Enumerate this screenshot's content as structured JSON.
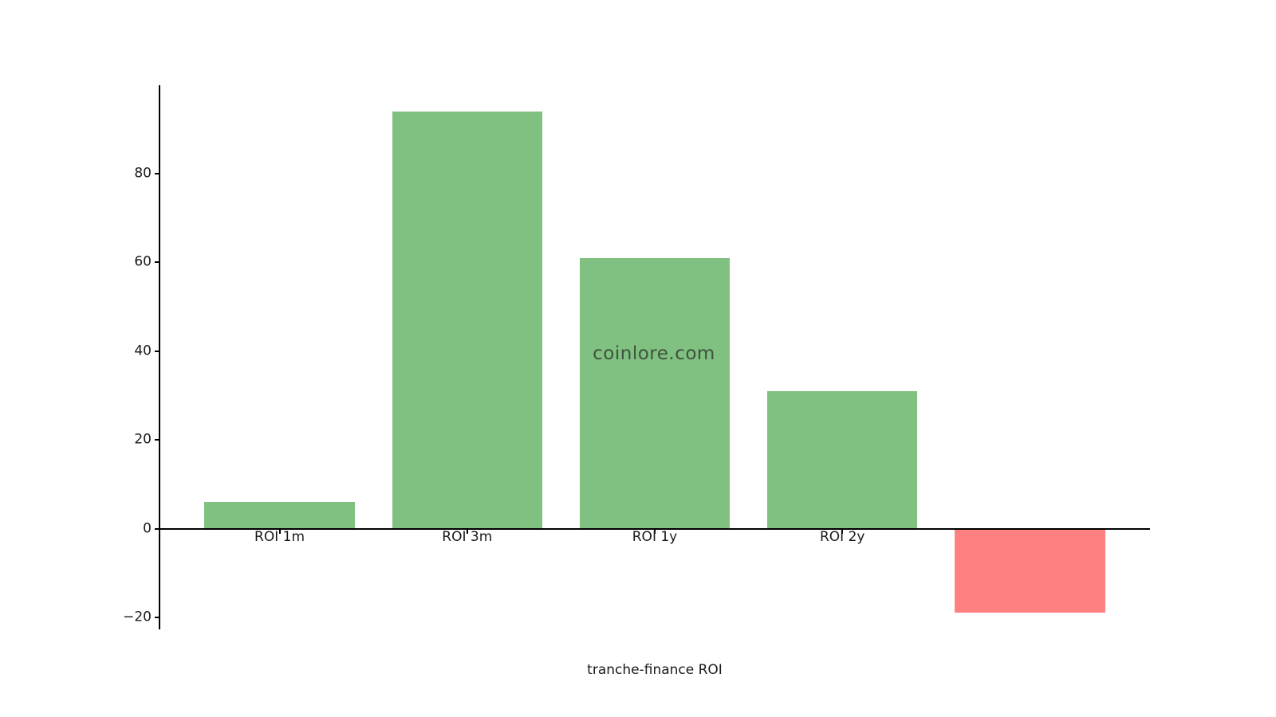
{
  "chart_data": {
    "type": "bar",
    "title": "tranche-finance ROI",
    "watermark": "coinlore.com",
    "categories": [
      "ROI 1m",
      "ROI 3m",
      "ROI 1y",
      "ROI 2y",
      ""
    ],
    "values": [
      6,
      94,
      61,
      31,
      -19
    ],
    "bar_colors": [
      "#80c080",
      "#80c080",
      "#80c080",
      "#80c080",
      "#ff8080"
    ],
    "positive_color": "#80c080",
    "negative_color": "#ff8080",
    "yticks": [
      80,
      60,
      40,
      20,
      0,
      -20
    ],
    "ytick_labels": [
      "80",
      "60",
      "40",
      "20",
      "0",
      "−20"
    ],
    "ylim": [
      -22.7,
      99.9
    ],
    "xlim": [
      -0.64,
      4.64
    ],
    "bar_width": 0.8,
    "grid": false,
    "legend": false,
    "xlabel": "",
    "ylabel": "",
    "axis_color": "#000000",
    "text_color": "#1a1a1a",
    "watermark_color": "rgba(45,55,45,0.8)"
  }
}
